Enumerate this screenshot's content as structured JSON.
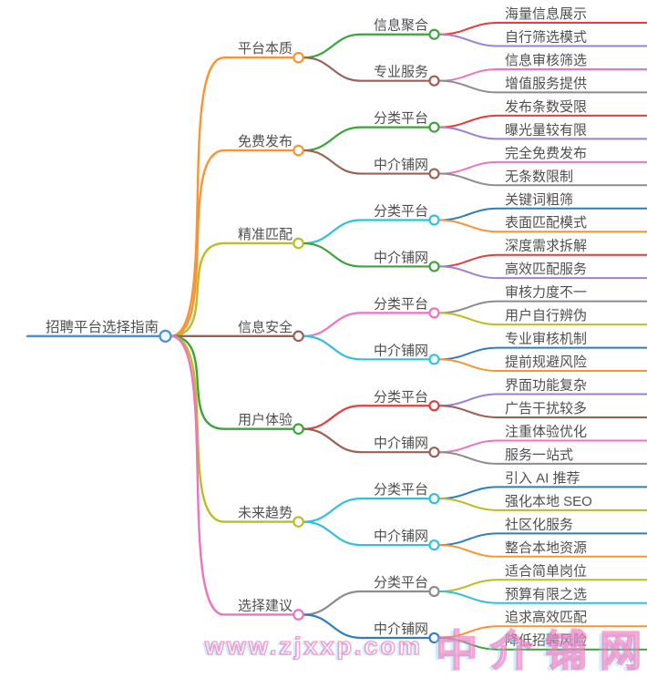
{
  "mindmap": {
    "root": {
      "label": "招聘平台选择指南",
      "color": "#4a90d2"
    },
    "branches": [
      {
        "label": "平台本质",
        "color": "#fb9333",
        "children": [
          {
            "label": "信息聚合",
            "color": "#3aa53a",
            "leaves": [
              {
                "label": "海量信息展示",
                "color": "#e23e3e"
              },
              {
                "label": "自行筛选模式",
                "color": "#9f7fd1"
              }
            ]
          },
          {
            "label": "专业服务",
            "color": "#9a6054",
            "leaves": [
              {
                "label": "信息审核筛选",
                "color": "#ef72c2"
              },
              {
                "label": "增值服务提供",
                "color": "#8c8c8c"
              }
            ]
          }
        ]
      },
      {
        "label": "免费发布",
        "color": "#fb9333",
        "children": [
          {
            "label": "分类平台",
            "color": "#3aa53a",
            "leaves": [
              {
                "label": "发布条数受限",
                "color": "#e23e3e"
              },
              {
                "label": "曝光量较有限",
                "color": "#9f7fd1"
              }
            ]
          },
          {
            "label": "中介铺网",
            "color": "#9a6054",
            "leaves": [
              {
                "label": "完全免费发布",
                "color": "#ef72c2"
              },
              {
                "label": "无条数限制",
                "color": "#8c8c8c"
              }
            ]
          }
        ]
      },
      {
        "label": "精准匹配",
        "color": "#bcbd22",
        "children": [
          {
            "label": "分类平台",
            "color": "#2fc2d9",
            "leaves": [
              {
                "label": "关键词粗筛",
                "color": "#2e7ebc"
              },
              {
                "label": "表面匹配模式",
                "color": "#fb9333"
              }
            ]
          },
          {
            "label": "中介铺网",
            "color": "#3aa53a",
            "leaves": [
              {
                "label": "深度需求拆解",
                "color": "#e23e3e"
              },
              {
                "label": "高效匹配服务",
                "color": "#9f7fd1"
              }
            ]
          }
        ]
      },
      {
        "label": "信息安全",
        "color": "#9a6054",
        "children": [
          {
            "label": "分类平台",
            "color": "#ef72c2",
            "leaves": [
              {
                "label": "审核力度不一",
                "color": "#8c8c8c"
              },
              {
                "label": "用户自行辨伪",
                "color": "#bcbd22"
              }
            ]
          },
          {
            "label": "中介铺网",
            "color": "#2fc2d9",
            "leaves": [
              {
                "label": "专业审核机制",
                "color": "#2e7ebc"
              },
              {
                "label": "提前规避风险",
                "color": "#fb9333"
              }
            ]
          }
        ]
      },
      {
        "label": "用户体验",
        "color": "#3aa53a",
        "children": [
          {
            "label": "分类平台",
            "color": "#e23e3e",
            "leaves": [
              {
                "label": "界面功能复杂",
                "color": "#9f7fd1"
              },
              {
                "label": "广告干扰较多",
                "color": "#9a6054"
              }
            ]
          },
          {
            "label": "中介铺网",
            "color": "#9a6054",
            "leaves": [
              {
                "label": "注重体验优化",
                "color": "#ef72c2"
              },
              {
                "label": "服务一站式",
                "color": "#8c8c8c"
              }
            ]
          }
        ]
      },
      {
        "label": "未来趋势",
        "color": "#bcbd22",
        "children": [
          {
            "label": "分类平台",
            "color": "#2fc2d9",
            "leaves": [
              {
                "label": "引入 AI 推荐",
                "color": "#2e7ebc"
              },
              {
                "label": "强化本地 SEO",
                "color": "#bcbd22"
              }
            ]
          },
          {
            "label": "中介铺网",
            "color": "#2fc2d9",
            "leaves": [
              {
                "label": "社区化服务",
                "color": "#2e7ebc"
              },
              {
                "label": "整合本地资源",
                "color": "#fb9333"
              }
            ]
          }
        ]
      },
      {
        "label": "选择建议",
        "color": "#ef72c2",
        "children": [
          {
            "label": "分类平台",
            "color": "#8c8c8c",
            "leaves": [
              {
                "label": "适合简单岗位",
                "color": "#bcbd22"
              },
              {
                "label": "预算有限之选",
                "color": "#2fc2d9"
              }
            ]
          },
          {
            "label": "中介铺网",
            "color": "#2e7ebc",
            "leaves": [
              {
                "label": "追求高效匹配",
                "color": "#fb9333"
              },
              {
                "label": "降低招聘风险",
                "color": "#3aa53a"
              }
            ]
          }
        ]
      }
    ]
  },
  "watermark": {
    "url_text": "www.zjxxp.com",
    "brand_text": "中介铺网"
  }
}
